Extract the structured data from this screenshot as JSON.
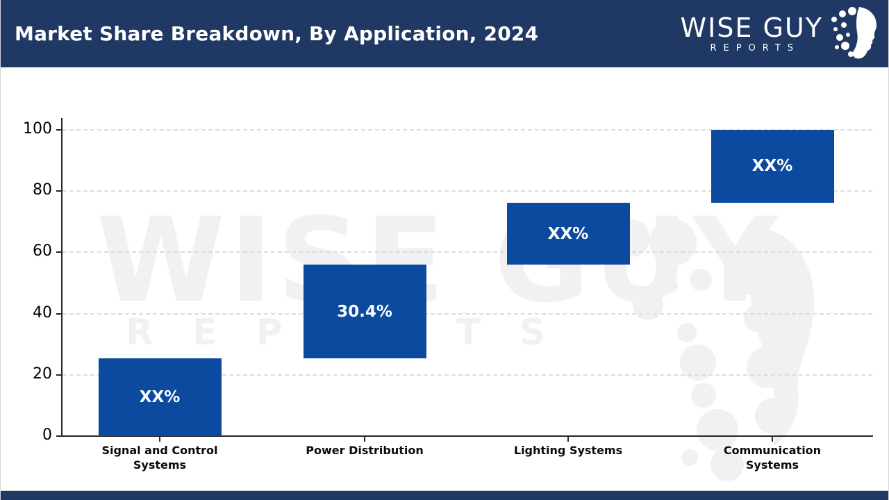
{
  "header": {
    "title": "Market Share Breakdown, By Application, 2024",
    "bg_color": "#203864",
    "brand": {
      "line1": "WISE GUY",
      "line2": "REPORTS"
    }
  },
  "watermark": {
    "line1": "WISE GUY",
    "line2": "REPORTS"
  },
  "footer": {
    "bg_color": "#203864"
  },
  "chart_data": {
    "type": "bar",
    "subtype": "waterfall-floating-bars",
    "title": "Market Share Breakdown, By Application, 2024",
    "categories": [
      "Signal and Control Systems",
      "Power Distribution",
      "Lighting Systems",
      "Communication Systems"
    ],
    "segments": [
      {
        "category": "Signal and Control Systems",
        "label": "XX%",
        "start": 0,
        "end": 25.5,
        "value_shown": "XX%"
      },
      {
        "category": "Power Distribution",
        "label": "30.4%",
        "start": 25.5,
        "end": 55.9,
        "value_shown": "30.4%"
      },
      {
        "category": "Lighting Systems",
        "label": "XX%",
        "start": 55.9,
        "end": 76.2,
        "value_shown": "XX%"
      },
      {
        "category": "Communication Systems",
        "label": "XX%",
        "start": 76.2,
        "end": 100,
        "value_shown": "XX%"
      }
    ],
    "yticks": [
      0,
      20,
      40,
      60,
      80,
      100
    ],
    "ylim": [
      0,
      100
    ],
    "xlabel": "",
    "ylabel": "",
    "grid": "horizontal-dashed",
    "legend": "none",
    "colors": {
      "bar": "#0b4a9f",
      "bar_label": "#ffffff",
      "axis": "#262626",
      "gridline": "#dcdcdc",
      "watermark": "#f1f1f3"
    }
  }
}
